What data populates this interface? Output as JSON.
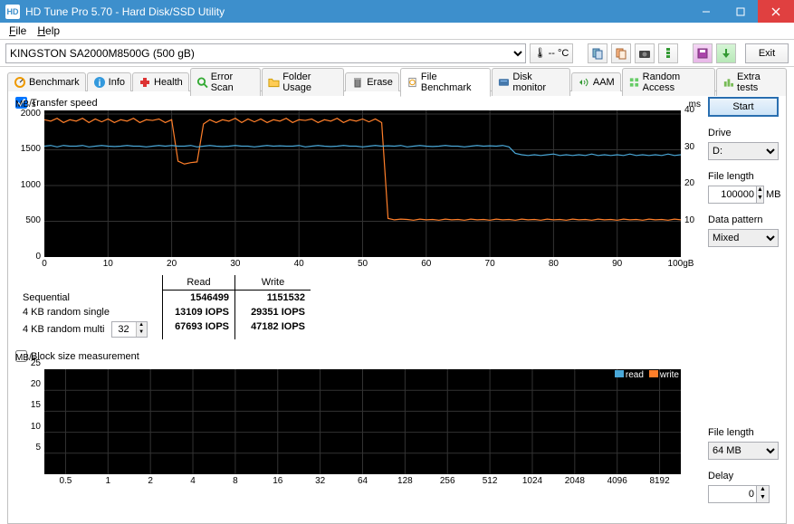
{
  "window": {
    "title": "HD Tune Pro 5.70 - Hard Disk/SSD Utility"
  },
  "menu": {
    "file": "File",
    "help": "Help"
  },
  "toolbar": {
    "drive": "KINGSTON SA2000M8500G (500 gB)",
    "temp": "-- °C",
    "exit": "Exit"
  },
  "tabs": {
    "benchmark": "Benchmark",
    "info": "Info",
    "health": "Health",
    "errorscan": "Error Scan",
    "folderusage": "Folder Usage",
    "erase": "Erase",
    "filebenchmark": "File Benchmark",
    "diskmonitor": "Disk monitor",
    "aam": "AAM",
    "randomaccess": "Random Access",
    "extratests": "Extra tests"
  },
  "transfer": {
    "label": "Transfer speed",
    "yunit": "MB/s",
    "yunit_right": "ms",
    "yticks": [
      "2000",
      "1500",
      "1000",
      "500",
      "0"
    ],
    "yticks_r": [
      "40",
      "30",
      "20",
      "10"
    ],
    "xticks": [
      "0",
      "10",
      "20",
      "30",
      "40",
      "50",
      "60",
      "70",
      "80",
      "90",
      "100gB"
    ],
    "chart_bg": "#000000",
    "grid_color": "#333333",
    "read_color": "#4aa8d8",
    "write_color": "#ff7f2a",
    "ylim": [
      0,
      2050
    ],
    "read_series": [
      1550,
      1560,
      1540,
      1560,
      1550,
      1550,
      1560,
      1540,
      1550,
      1560,
      1550,
      1545,
      1550,
      1560,
      1550,
      1550,
      1540,
      1550,
      1560,
      1550,
      1560,
      1550,
      1550,
      1560,
      1540,
      1550,
      1560,
      1550,
      1545,
      1550,
      1560,
      1550,
      1550,
      1540,
      1550,
      1560,
      1550,
      1555,
      1550,
      1550,
      1560,
      1540,
      1550,
      1560,
      1550,
      1545,
      1550,
      1560,
      1550,
      1550,
      1540,
      1550,
      1560,
      1550,
      1555,
      1550,
      1560,
      1540,
      1550,
      1560,
      1550,
      1545,
      1550,
      1560,
      1550,
      1550,
      1540,
      1550,
      1560,
      1550,
      1555,
      1550,
      1560,
      1540,
      1450,
      1430,
      1420,
      1430,
      1420,
      1430,
      1440,
      1420,
      1430,
      1420,
      1430,
      1420,
      1440,
      1420,
      1430,
      1420,
      1430,
      1420,
      1440,
      1420,
      1430,
      1420,
      1430,
      1420,
      1440,
      1420,
      1430
    ],
    "write_series": [
      1920,
      1900,
      1940,
      1880,
      1920,
      1900,
      1940,
      1880,
      1930,
      1890,
      1930,
      1880,
      1920,
      1900,
      1940,
      1880,
      1920,
      1910,
      1930,
      1880,
      1920,
      1340,
      1300,
      1320,
      1330,
      1860,
      1920,
      1880,
      1920,
      1900,
      1940,
      1880,
      1930,
      1890,
      1930,
      1880,
      1920,
      1900,
      1940,
      1880,
      1920,
      1910,
      1930,
      1880,
      1920,
      1900,
      1940,
      1880,
      1920,
      1900,
      1930,
      1890,
      1930,
      1880,
      540,
      520,
      530,
      525,
      515,
      530,
      520,
      525,
      515,
      530,
      520,
      525,
      515,
      530,
      520,
      525,
      515,
      530,
      520,
      525,
      515,
      530,
      520,
      525,
      515,
      530,
      520,
      525,
      515,
      530,
      520,
      525,
      515,
      530,
      520,
      525,
      515,
      530,
      520,
      525,
      515,
      530,
      520,
      525,
      515,
      530,
      520
    ]
  },
  "results": {
    "col_read": "Read",
    "col_write": "Write",
    "seq_label": "Sequential",
    "seq_read": "1546499",
    "seq_write": "1151532",
    "rnd_single_label": "4 KB random single",
    "rnd_single_read": "13109 IOPS",
    "rnd_single_write": "29351 IOPS",
    "rnd_multi_label": "4 KB random multi",
    "rnd_multi_read": "67693 IOPS",
    "rnd_multi_write": "47182 IOPS",
    "multi_q": "32"
  },
  "block": {
    "label": "Block size measurement",
    "yunit": "MB/s",
    "yticks": [
      "25",
      "20",
      "15",
      "10",
      "5"
    ],
    "xticks": [
      "0.5",
      "1",
      "2",
      "4",
      "8",
      "16",
      "32",
      "64",
      "128",
      "256",
      "512",
      "1024",
      "2048",
      "4096",
      "8192"
    ],
    "legend_read": "read",
    "legend_write": "write",
    "read_color": "#4aa8d8",
    "write_color": "#ff7f2a"
  },
  "controls": {
    "start": "Start",
    "drive_label": "Drive",
    "drive_value": "D:",
    "filelen_label": "File length",
    "filelen_value": "100000",
    "filelen_unit": "MB",
    "pattern_label": "Data pattern",
    "pattern_value": "Mixed",
    "filelen2_label": "File length",
    "filelen2_value": "64 MB",
    "delay_label": "Delay",
    "delay_value": "0"
  }
}
